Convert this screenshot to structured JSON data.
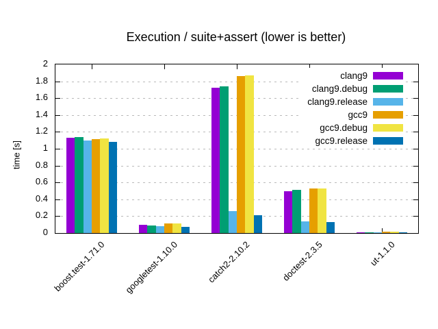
{
  "page": {
    "background": "#ffffff",
    "border_color": "#000000",
    "grid_color": "#b9b9b9"
  },
  "chart_data": {
    "type": "bar",
    "title": "Execution / suite+assert (lower is better)",
    "xlabel": "",
    "ylabel": "time [s]",
    "ylim": [
      0,
      2
    ],
    "ytick_step": 0.2,
    "ytick_labels": [
      "0",
      "0.2",
      "0.4",
      "0.6",
      "0.8",
      "1",
      "1.2",
      "1.4",
      "1.6",
      "1.8",
      "2"
    ],
    "grid": "horizontal-dashed",
    "legend_position": "top-right-inside",
    "categories": [
      "boost.test-1.71.0",
      "googletest-1.10.0",
      "catch2-2.10.2",
      "doctest-2.3.5",
      "ut-1.1.0"
    ],
    "series": [
      {
        "name": "clang9",
        "color": "#9400d3",
        "values": [
          1.13,
          0.1,
          1.72,
          0.5,
          0.01
        ]
      },
      {
        "name": "clang9.debug",
        "color": "#009e73",
        "values": [
          1.14,
          0.09,
          1.74,
          0.51,
          0.01
        ]
      },
      {
        "name": "clang9.release",
        "color": "#56b4e9",
        "values": [
          1.1,
          0.08,
          0.26,
          0.14,
          0.01
        ]
      },
      {
        "name": "gcc9",
        "color": "#e69f00",
        "values": [
          1.11,
          0.11,
          1.86,
          0.53,
          0.02
        ]
      },
      {
        "name": "gcc9.debug",
        "color": "#f0e442",
        "values": [
          1.12,
          0.11,
          1.87,
          0.53,
          0.02
        ]
      },
      {
        "name": "gcc9.release",
        "color": "#0072b2",
        "values": [
          1.08,
          0.07,
          0.21,
          0.13,
          0.01
        ]
      }
    ]
  }
}
